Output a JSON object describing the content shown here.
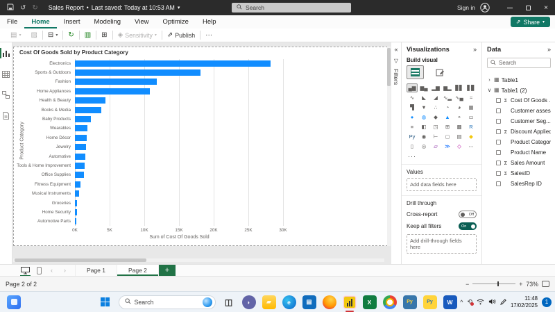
{
  "titlebar": {
    "app_title": "Sales Report",
    "separator": "•",
    "saved_status": "Last saved: Today at 10:53 AM",
    "search_placeholder": "Search",
    "sign_in_label": "Sign in"
  },
  "menu": {
    "items": [
      "File",
      "Home",
      "Insert",
      "Modeling",
      "View",
      "Optimize",
      "Help"
    ],
    "active": "Home"
  },
  "ribbon": {
    "items": [
      {
        "name": "paste",
        "glyph": "▤",
        "disabled": true,
        "caret": true
      },
      {
        "name": "format-painter",
        "glyph": "▨",
        "disabled": true,
        "sep_after": true
      },
      {
        "name": "get-data",
        "glyph": "⊟",
        "caret": true,
        "sep_after": true
      },
      {
        "name": "refresh",
        "glyph": "↻",
        "color": "#107c10",
        "sep_after": true
      },
      {
        "name": "new-visual",
        "glyph": "▥",
        "color": "#107c10",
        "sep_after": true
      },
      {
        "name": "calculator",
        "glyph": "⊞",
        "sep_after": true
      },
      {
        "name": "sensitivity",
        "glyph": "◈",
        "label": "Sensitivity",
        "disabled": true,
        "caret": true,
        "sep_after": true
      },
      {
        "name": "publish",
        "glyph": "⇗",
        "label": "Publish",
        "sep_after": true
      },
      {
        "name": "more",
        "glyph": "···"
      }
    ],
    "share_label": "Share"
  },
  "chart_data": {
    "type": "bar",
    "orientation": "horizontal",
    "title": "Cost Of Goods Sold by Product Category",
    "categories": [
      "Electronics",
      "Sports & Outdoors",
      "Fashion",
      "Home Appliances",
      "Health & Beauty",
      "Books & Media",
      "Baby Products",
      "Wearables",
      "Home Décor",
      "Jewelry",
      "Automotive",
      "Tools & Home Improvement",
      "Office Supplies",
      "Fitness Equipment",
      "Musical Instruments",
      "Groceries",
      "Home Security",
      "Automotive Parts"
    ],
    "values": [
      28200,
      18100,
      11800,
      10800,
      4400,
      3800,
      2300,
      1800,
      1700,
      1600,
      1500,
      1400,
      1300,
      800,
      600,
      250,
      250,
      200
    ],
    "xlabel": "Sum of Cost Of Goods Sold",
    "ylabel": "Product Category",
    "xlim": [
      0,
      30000
    ],
    "x_ticks": [
      "0K",
      "5K",
      "10K",
      "15K",
      "20K",
      "25K",
      "30K"
    ],
    "bar_color": "#118DFF",
    "grid": true,
    "legend": "none"
  },
  "filters_pane": {
    "label": "Filters"
  },
  "visualizations": {
    "title": "Visualizations",
    "build_visual_label": "Build visual",
    "gallery": [
      {
        "name": "stacked-bar-chart",
        "glyph": "▄▆",
        "selected": true
      },
      {
        "name": "stacked-column-chart",
        "glyph": "▆▄"
      },
      {
        "name": "clustered-bar-chart",
        "glyph": "▂▆"
      },
      {
        "name": "clustered-column-chart",
        "glyph": "▆▂"
      },
      {
        "name": "100-stacked-bar-chart",
        "glyph": "▊▋"
      },
      {
        "name": "100-stacked-column-chart",
        "glyph": "▋▊"
      },
      {
        "name": "line-chart",
        "glyph": "∿"
      },
      {
        "name": "area-chart",
        "glyph": "◣"
      },
      {
        "name": "stacked-area-chart",
        "glyph": "◢"
      },
      {
        "name": "line-and-stacked-column-chart",
        "glyph": "∿▂"
      },
      {
        "name": "line-and-clustered-column-chart",
        "glyph": "∿▄"
      },
      {
        "name": "ribbon-chart",
        "glyph": "≈"
      },
      {
        "name": "waterfall-chart",
        "glyph": "▜"
      },
      {
        "name": "funnel-chart",
        "glyph": "▼"
      },
      {
        "name": "scatter-chart",
        "glyph": "∴"
      },
      {
        "name": "pie-chart",
        "glyph": "◔"
      },
      {
        "name": "donut-chart",
        "glyph": "◕"
      },
      {
        "name": "treemap",
        "glyph": "▦"
      },
      {
        "name": "map",
        "glyph": "●",
        "color": "#118DFF"
      },
      {
        "name": "filled-map",
        "glyph": "◍",
        "color": "#118DFF"
      },
      {
        "name": "shape-map",
        "glyph": "◆"
      },
      {
        "name": "azure-map",
        "glyph": "▲",
        "color": "#118DFF"
      },
      {
        "name": "gauge",
        "glyph": "◓"
      },
      {
        "name": "card",
        "glyph": "▭"
      },
      {
        "name": "multi-row-card",
        "glyph": "≡"
      },
      {
        "name": "kpi",
        "glyph": "◧"
      },
      {
        "name": "slicer",
        "glyph": "◳"
      },
      {
        "name": "table",
        "glyph": "⊞"
      },
      {
        "name": "matrix",
        "glyph": "▩"
      },
      {
        "name": "r-script-visual",
        "glyph": "R",
        "color": "#1f6fb5"
      },
      {
        "name": "python-visual",
        "glyph": "Py",
        "color": "#2b5b84"
      },
      {
        "name": "key-influencers",
        "glyph": "◉"
      },
      {
        "name": "decomposition-tree",
        "glyph": "⊢"
      },
      {
        "name": "qa-visual",
        "glyph": "◻"
      },
      {
        "name": "smart-narrative",
        "glyph": "▤"
      },
      {
        "name": "metrics",
        "glyph": "◆",
        "color": "#f2c80f"
      },
      {
        "name": "paginated-report",
        "glyph": "▯"
      },
      {
        "name": "arcgis-map",
        "glyph": "◎"
      },
      {
        "name": "power-apps",
        "glyph": "▱",
        "color": "#8a2da5"
      },
      {
        "name": "power-automate",
        "glyph": "≫",
        "color": "#0066ff"
      },
      {
        "name": "custom-visual",
        "glyph": "◇",
        "color": "#b4009e"
      },
      {
        "name": "get-more-visuals",
        "glyph": "⋯"
      }
    ],
    "more_label": "···",
    "values_label": "Values",
    "add_fields_placeholder": "Add data fields here",
    "drill_through_label": "Drill through",
    "cross_report_label": "Cross-report",
    "keep_all_filters_label": "Keep all filters",
    "toggle_off_label": "Off",
    "toggle_on_label": "On",
    "add_drill_placeholder": "Add drill-through fields here"
  },
  "data_pane": {
    "title": "Data",
    "search_placeholder": "Search",
    "tables": [
      {
        "name": "Table1",
        "expanded": false,
        "fields": []
      },
      {
        "name": "Table1 (2)",
        "expanded": true,
        "fields": [
          {
            "name": "Cost Of Goods ...",
            "sigma": true
          },
          {
            "name": "Customer asses...",
            "sigma": false
          },
          {
            "name": "Customer Seg...",
            "sigma": false
          },
          {
            "name": "Discount Applied",
            "sigma": true
          },
          {
            "name": "Product Category",
            "sigma": false
          },
          {
            "name": "Product Name",
            "sigma": false
          },
          {
            "name": "Sales Amount",
            "sigma": true
          },
          {
            "name": "SalesID",
            "sigma": true
          },
          {
            "name": "SalesRep ID",
            "sigma": false
          }
        ]
      }
    ]
  },
  "page_tabs": {
    "pages": [
      "Page 1",
      "Page 2"
    ],
    "active": "Page 2"
  },
  "status_bar": {
    "page_indicator": "Page 2 of 2",
    "zoom_level": "73%"
  },
  "taskbar": {
    "search_placeholder": "Search",
    "apps": [
      {
        "name": "task-view",
        "glyph": "◫",
        "fg": "#3b3a39",
        "bg": "",
        "fs": 12
      },
      {
        "name": "chat",
        "glyph": "◗",
        "bg": "#6264a7",
        "fg": "#fff",
        "round": true
      },
      {
        "name": "file-explorer",
        "glyph": "▰",
        "bg": "linear-gradient(180deg,#ffd75e,#ffb900)",
        "fg": "#fff8e0"
      },
      {
        "name": "edge-browser",
        "glyph": "e",
        "bg": "",
        "fg": "#fff",
        "round": true,
        "cls": "app-edge"
      },
      {
        "name": "microsoft-store",
        "glyph": "▤",
        "bg": "#0f6cbd",
        "fg": "#fff"
      },
      {
        "name": "firefox",
        "glyph": "",
        "bg": "",
        "fg": "#fff",
        "round": true,
        "cls": "app-firefox"
      },
      {
        "name": "power-bi",
        "glyph": "",
        "bg": "",
        "fg": "#333",
        "active": true,
        "pbi": true
      },
      {
        "name": "excel",
        "glyph": "X",
        "bg": "#107c41",
        "fg": "#fff"
      },
      {
        "name": "chrome",
        "glyph": "",
        "bg": "",
        "fg": "#fff",
        "round": true,
        "cls": "app-chrome"
      },
      {
        "name": "python-app",
        "glyph": "Py",
        "bg": "#3776ab",
        "fg": "#ffd43b",
        "fs": 7
      },
      {
        "name": "python-idle",
        "glyph": "Py",
        "bg": "#ffd43b",
        "fg": "#3776ab",
        "fs": 7
      },
      {
        "name": "word",
        "glyph": "W",
        "bg": "#185abd",
        "fg": "#fff"
      }
    ],
    "time": "11:48",
    "date": "17/02/2025",
    "notification_badge": "1"
  },
  "glyphs": {
    "caret_down": "▾",
    "double_chevron_left": "«",
    "double_chevron_right": "»",
    "undo": "↺",
    "redo": "↻",
    "close": "×",
    "funnel": "▽",
    "sigma": "Σ",
    "table_icon": "▦",
    "chevron_collapsed": "›",
    "chevron_expanded": "∨",
    "page_prev": "‹",
    "page_next": "›",
    "add_page": "+",
    "zoom_out": "−",
    "zoom_in": "+",
    "share": "⇗",
    "tray_chevron": "^",
    "tray_sync": "⟲"
  }
}
